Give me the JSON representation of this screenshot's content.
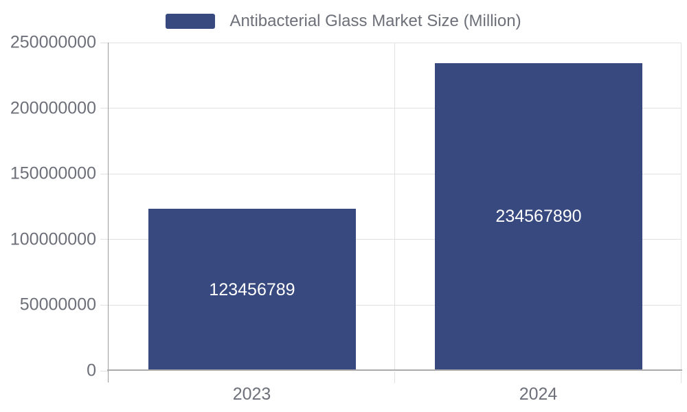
{
  "chart_data": {
    "type": "bar",
    "title": "Antibacterial Glass Market Size (Million)",
    "categories": [
      "2023",
      "2024"
    ],
    "series": [
      {
        "name": "Antibacterial Glass Market Size (Million)",
        "values": [
          123456789,
          234567890
        ]
      }
    ],
    "value_labels": [
      "123456789",
      "234567890"
    ],
    "y_ticks": [
      "0",
      "50000000",
      "100000000",
      "150000000",
      "200000000",
      "250000000"
    ],
    "ylim": [
      0,
      250000000
    ],
    "xlabel": "",
    "ylabel": "",
    "grid": true,
    "legend_position": "top",
    "colors": {
      "bar": "#37497E",
      "grid": "#e0e0e0",
      "axis_y": "#9a9a9a",
      "axis_x": "#ababab",
      "label_text": "#6e7079",
      "bar_label_text": "#ffffff",
      "background": "#ffffff"
    }
  }
}
